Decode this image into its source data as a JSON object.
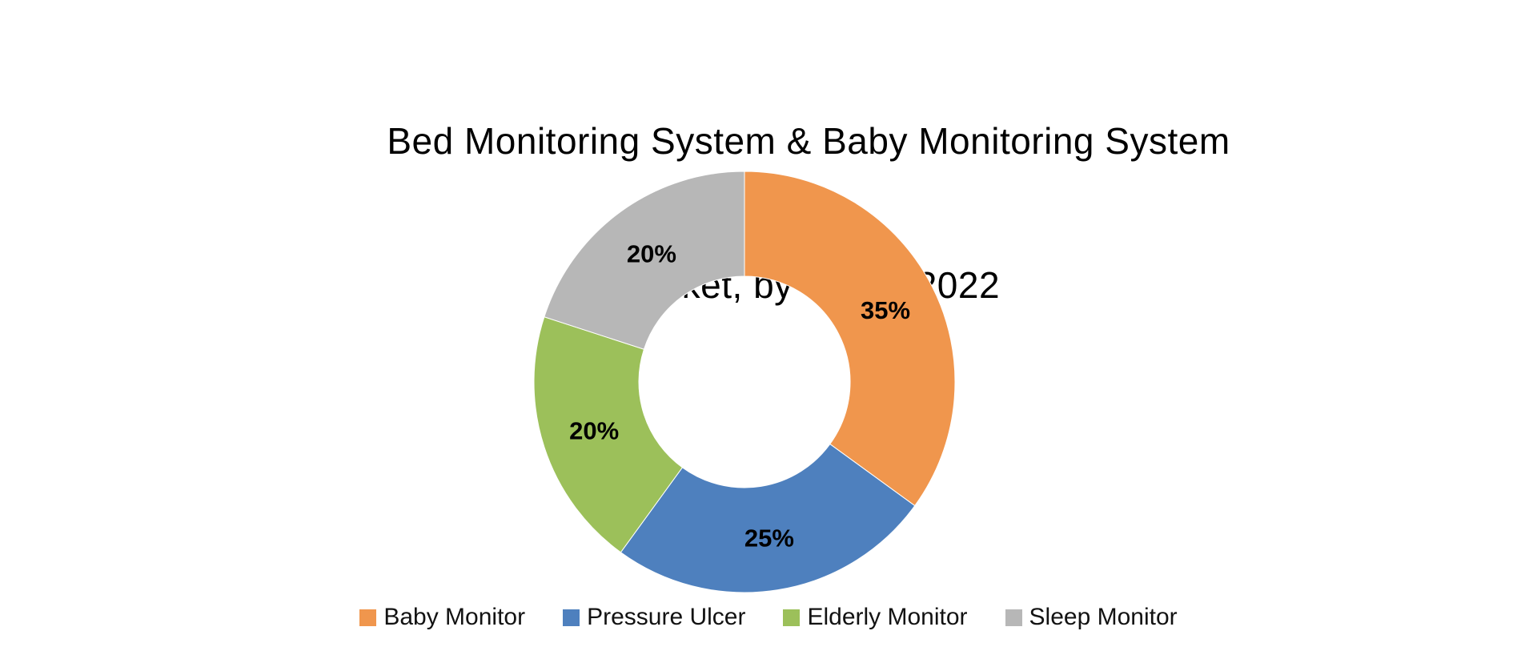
{
  "title": {
    "line1": "Bed Monitoring System & Baby Monitoring System",
    "line2": "Market, by  Type, 2022"
  },
  "chart_data": {
    "type": "pie",
    "subtype": "donut",
    "title": "Bed Monitoring System & Baby Monitoring System Market, by  Type, 2022",
    "categories": [
      "Baby Monitor",
      "Pressure Ulcer",
      "Elderly Monitor",
      "Sleep Monitor"
    ],
    "values": [
      35,
      25,
      20,
      20
    ],
    "labels": [
      "35%",
      "25%",
      "20%",
      "20%"
    ],
    "colors": [
      "#F0964D",
      "#4E80BE",
      "#9CC05A",
      "#B7B7B7"
    ],
    "label_color": "#000000",
    "start_angle_deg": 0,
    "direction": "clockwise",
    "inner_radius_ratio": 0.5,
    "grid": false,
    "legend_position": "bottom",
    "background_color": "#FFFFFF"
  },
  "legend": {
    "items": [
      {
        "label": "Baby Monitor",
        "color": "#F0964D"
      },
      {
        "label": "Pressure Ulcer",
        "color": "#4E80BE"
      },
      {
        "label": "Elderly Monitor",
        "color": "#9CC05A"
      },
      {
        "label": "Sleep Monitor",
        "color": "#B7B7B7"
      }
    ]
  }
}
